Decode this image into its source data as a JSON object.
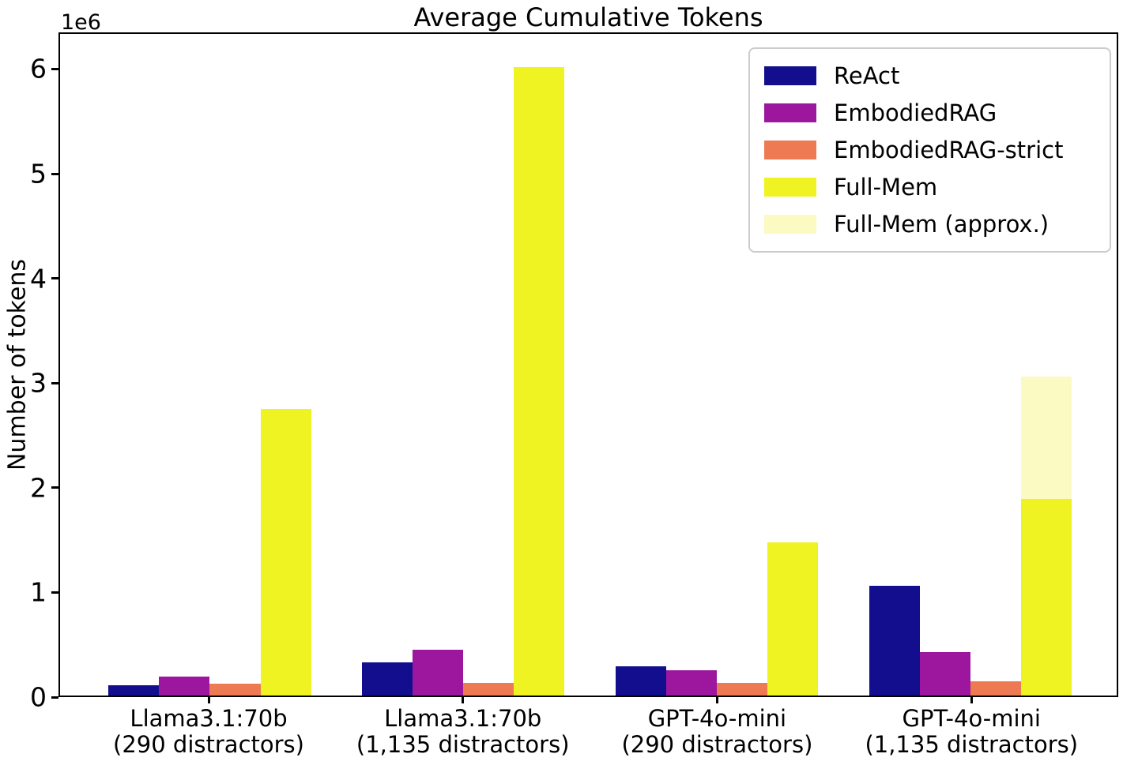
{
  "chart_data": {
    "type": "bar",
    "title": "Average Cumulative Tokens",
    "ylabel": "Number of tokens",
    "xlabel": "",
    "y_offset_label": "1e6",
    "ylim": [
      0,
      6350000
    ],
    "yticks": [
      0,
      1,
      2,
      3,
      4,
      5,
      6
    ],
    "ytick_scale": 1000000,
    "grid": false,
    "legend_position": "upper right",
    "categories": [
      "Llama3.1:70b\n(290 distractors)",
      "Llama3.1:70b\n(1,135 distractors)",
      "GPT-4o-mini\n(290 distractors)",
      "GPT-4o-mini\n(1,135 distractors)"
    ],
    "series": [
      {
        "name": "ReAct",
        "color": "#130e8d",
        "values": [
          100000,
          320000,
          280000,
          1050000
        ]
      },
      {
        "name": "EmbodiedRAG",
        "color": "#9c179e",
        "values": [
          185000,
          440000,
          240000,
          415000
        ]
      },
      {
        "name": "EmbodiedRAG-strict",
        "color": "#ed7a53",
        "values": [
          110000,
          125000,
          125000,
          135000
        ]
      },
      {
        "name": "Full-Mem",
        "color": "#eff321",
        "values": [
          2750000,
          6030000,
          1470000,
          1890000
        ]
      },
      {
        "name": "Full-Mem (approx.)",
        "color": "#fafac2",
        "values": [
          0,
          0,
          0,
          1170000
        ],
        "stacked_on": "Full-Mem"
      }
    ]
  }
}
